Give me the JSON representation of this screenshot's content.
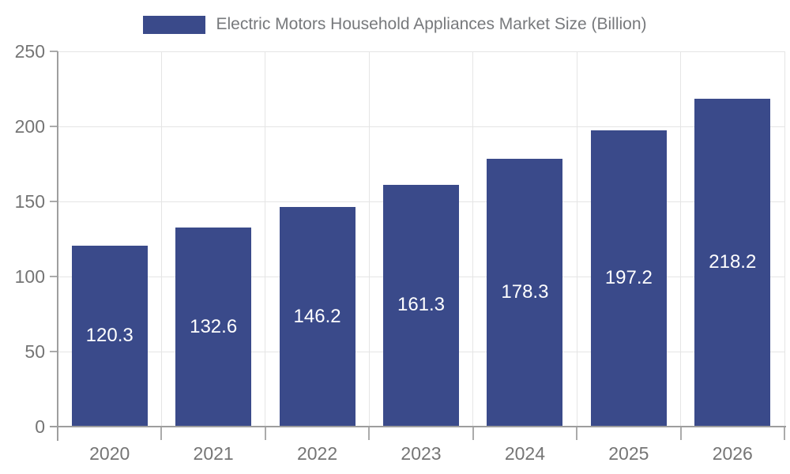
{
  "chart_data": {
    "type": "bar",
    "title": "Electric Motors Household Appliances Market Size (Billion)",
    "categories": [
      "2020",
      "2021",
      "2022",
      "2023",
      "2024",
      "2025",
      "2026"
    ],
    "values": [
      120.3,
      132.6,
      146.2,
      161.3,
      178.3,
      197.2,
      218.2
    ],
    "value_labels": [
      "120.3",
      "132.6",
      "146.2",
      "161.3",
      "178.3",
      "197.2",
      "218.2"
    ],
    "xlabel": "",
    "ylabel": "",
    "ylim": [
      0,
      250
    ],
    "yticks": [
      0,
      50,
      100,
      150,
      200,
      250
    ],
    "ytick_labels": [
      "0",
      "50",
      "100",
      "150",
      "200",
      "250"
    ],
    "grid": true,
    "legend_position": "top-center",
    "colors": {
      "bar": "#3A4A8A",
      "grid": "#E5E5E5",
      "axis": "#9E9E9E",
      "tick": "#ABABAB",
      "tick_label": "#757575",
      "legend_text": "#77797C",
      "value_label": "#FFFFFF",
      "background": "#FFFFFF"
    }
  }
}
